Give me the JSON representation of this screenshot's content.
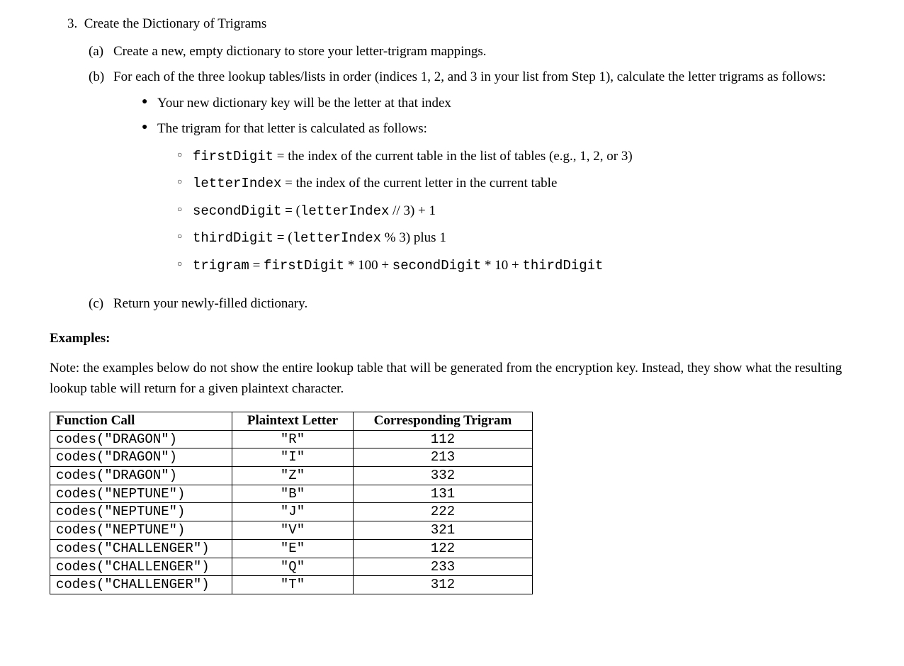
{
  "step": {
    "number": "3.",
    "title": "Create the Dictionary of Trigrams",
    "subs": {
      "a": {
        "label": "(a)",
        "text": "Create a new, empty dictionary to store your letter-trigram mappings."
      },
      "b": {
        "label": "(b)",
        "text": "For each of the three lookup tables/lists in order (indices 1, 2, and 3 in your list from Step 1), calculate the letter trigrams as follows:",
        "bullets": {
          "b1": "Your new dictionary key will be the letter at that index",
          "b2": "The trigram for that letter is calculated as follows:"
        },
        "circ": {
          "c1": {
            "code": "firstDigit",
            "rest": " = the index of the current table in the list of tables (e.g., 1, 2, or 3)"
          },
          "c2": {
            "code": "letterIndex",
            "rest": " = the index of the current letter in the current table"
          },
          "c3": {
            "code1": "secondDigit",
            "mid": " = (",
            "code2": "letterIndex",
            "rest": " // 3) + 1"
          },
          "c4": {
            "code1": "thirdDigit",
            "mid": " = (",
            "code2": "letterIndex",
            "rest": " % 3) plus 1"
          },
          "c5": {
            "code1": "trigram",
            "mid": " = ",
            "code2": "firstDigit",
            "mid2": " * 100 + ",
            "code3": "secondDigit",
            "mid3": " * 10 + ",
            "code4": "thirdDigit"
          }
        }
      },
      "c": {
        "label": "(c)",
        "text": "Return your newly-filled dictionary."
      }
    }
  },
  "examples": {
    "heading": "Examples:",
    "note": "Note: the examples below do not show the entire lookup table that will be generated from the encryption key. Instead, they show what the resulting lookup table will return for a given plaintext character."
  },
  "table": {
    "headers": {
      "fn": "Function Call",
      "pl": "Plaintext Letter",
      "tg": "Corresponding Trigram"
    },
    "rows": [
      {
        "fn": "codes(\"DRAGON\")",
        "pl": "\"R\"",
        "tg": "112"
      },
      {
        "fn": "codes(\"DRAGON\")",
        "pl": "\"I\"",
        "tg": "213"
      },
      {
        "fn": "codes(\"DRAGON\")",
        "pl": "\"Z\"",
        "tg": "332"
      },
      {
        "fn": "codes(\"NEPTUNE\")",
        "pl": "\"B\"",
        "tg": "131"
      },
      {
        "fn": "codes(\"NEPTUNE\")",
        "pl": "\"J\"",
        "tg": "222"
      },
      {
        "fn": "codes(\"NEPTUNE\")",
        "pl": "\"V\"",
        "tg": "321"
      },
      {
        "fn": "codes(\"CHALLENGER\")",
        "pl": "\"E\"",
        "tg": "122"
      },
      {
        "fn": "codes(\"CHALLENGER\")",
        "pl": "\"Q\"",
        "tg": "233"
      },
      {
        "fn": "codes(\"CHALLENGER\")",
        "pl": "\"T\"",
        "tg": "312"
      }
    ],
    "col_widths": {
      "fn": 240,
      "pl": 154,
      "tg": 236
    },
    "border_color": "#000000",
    "font_size": 19
  },
  "colors": {
    "text": "#000000",
    "background": "#ffffff"
  },
  "typography": {
    "body_font": "Times New Roman",
    "mono_font": "Courier New",
    "body_size_pt": 14
  }
}
